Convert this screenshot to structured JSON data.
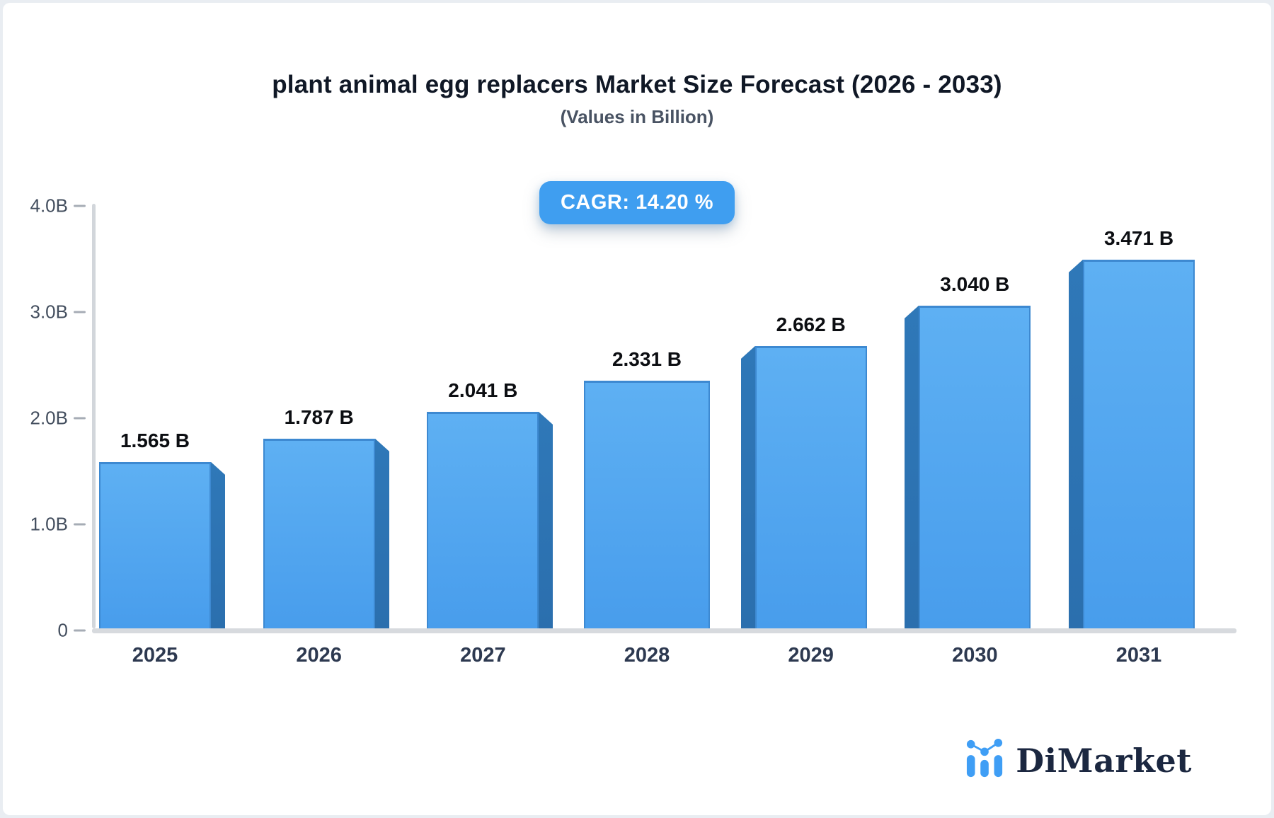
{
  "header": {
    "title": "plant animal egg replacers Market Size Forecast (2026 - 2033)",
    "subtitle": "(Values in Billion)",
    "cagr_badge": "CAGR: 14.20 %"
  },
  "chart_data": {
    "type": "bar",
    "title": "plant animal egg replacers Market Size Forecast (2026 - 2033)",
    "subtitle": "(Values in Billion)",
    "categories": [
      "2025",
      "2026",
      "2027",
      "2028",
      "2029",
      "2030",
      "2031"
    ],
    "values": [
      1.565,
      1.787,
      2.041,
      2.331,
      2.662,
      3.04,
      3.471
    ],
    "value_labels": [
      "1.565 B",
      "1.787 B",
      "2.041 B",
      "2.331 B",
      "2.662 B",
      "3.040 B",
      "3.471 B"
    ],
    "xlabel": "",
    "ylabel": "",
    "ylim": [
      0,
      4.0
    ],
    "yticks": [
      {
        "label": "4.0B",
        "value": 4.0
      },
      {
        "label": "3.0B",
        "value": 3.0
      },
      {
        "label": "2.0B",
        "value": 2.0
      },
      {
        "label": "1.0B",
        "value": 1.0
      },
      {
        "label": "0",
        "value": 0.0
      }
    ],
    "grid": false,
    "legend": "none",
    "bar_color": "#4ba2ef",
    "bar_side_color": "#2e76b5",
    "axis_color": "#d2d6db"
  },
  "branding": {
    "logo_text": "DiMarket",
    "logo_icon": "bar-chart-icon",
    "icon_color": "#3f9ef5",
    "text_color": "#1b2740"
  }
}
